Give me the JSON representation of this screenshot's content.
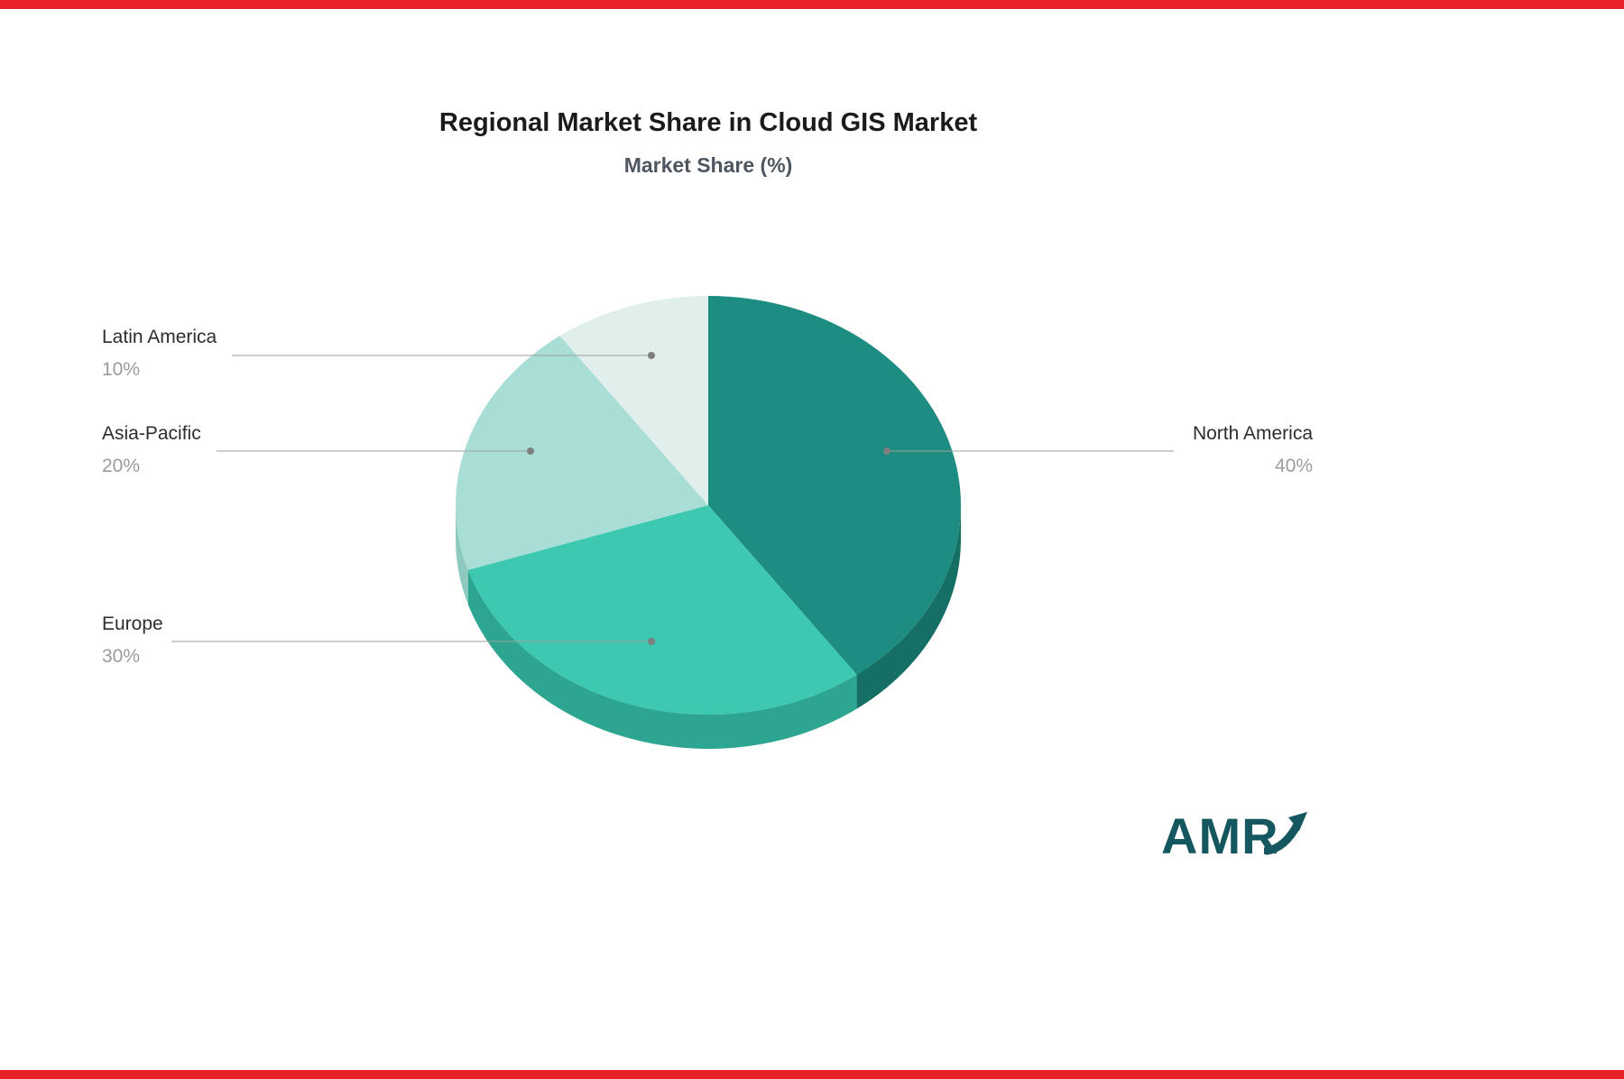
{
  "chart_data": {
    "type": "pie",
    "style": "3d",
    "title": "Regional Market Share in Cloud GIS Market",
    "subtitle": "Market Share (%)",
    "unit": "%",
    "labels": [
      "North America",
      "Europe",
      "Asia-Pacific",
      "Latin America"
    ],
    "values": [
      40,
      30,
      20,
      10
    ],
    "value_labels": [
      "40%",
      "30%",
      "20%",
      "10%"
    ],
    "colors": [
      "#1e8d81",
      "#3dc9b1",
      "#a9ded6",
      "#e0eeec"
    ],
    "side_colors": [
      "#156f64",
      "#2da691",
      "#8ec9bf",
      "#c2dcd7"
    ],
    "start_angle_deg": 0,
    "direction": "clockwise",
    "legend": "none",
    "grid": "off"
  },
  "branding": {
    "logo_text": "AMR"
  },
  "accents": {
    "frame_color": "#e92128",
    "label_color": "#2d2d2d",
    "value_color": "#9b9b9b",
    "leader_line_color": "#9e9e9e",
    "leader_dot_color": "#7f7f7f",
    "logo_color": "#14575e"
  }
}
